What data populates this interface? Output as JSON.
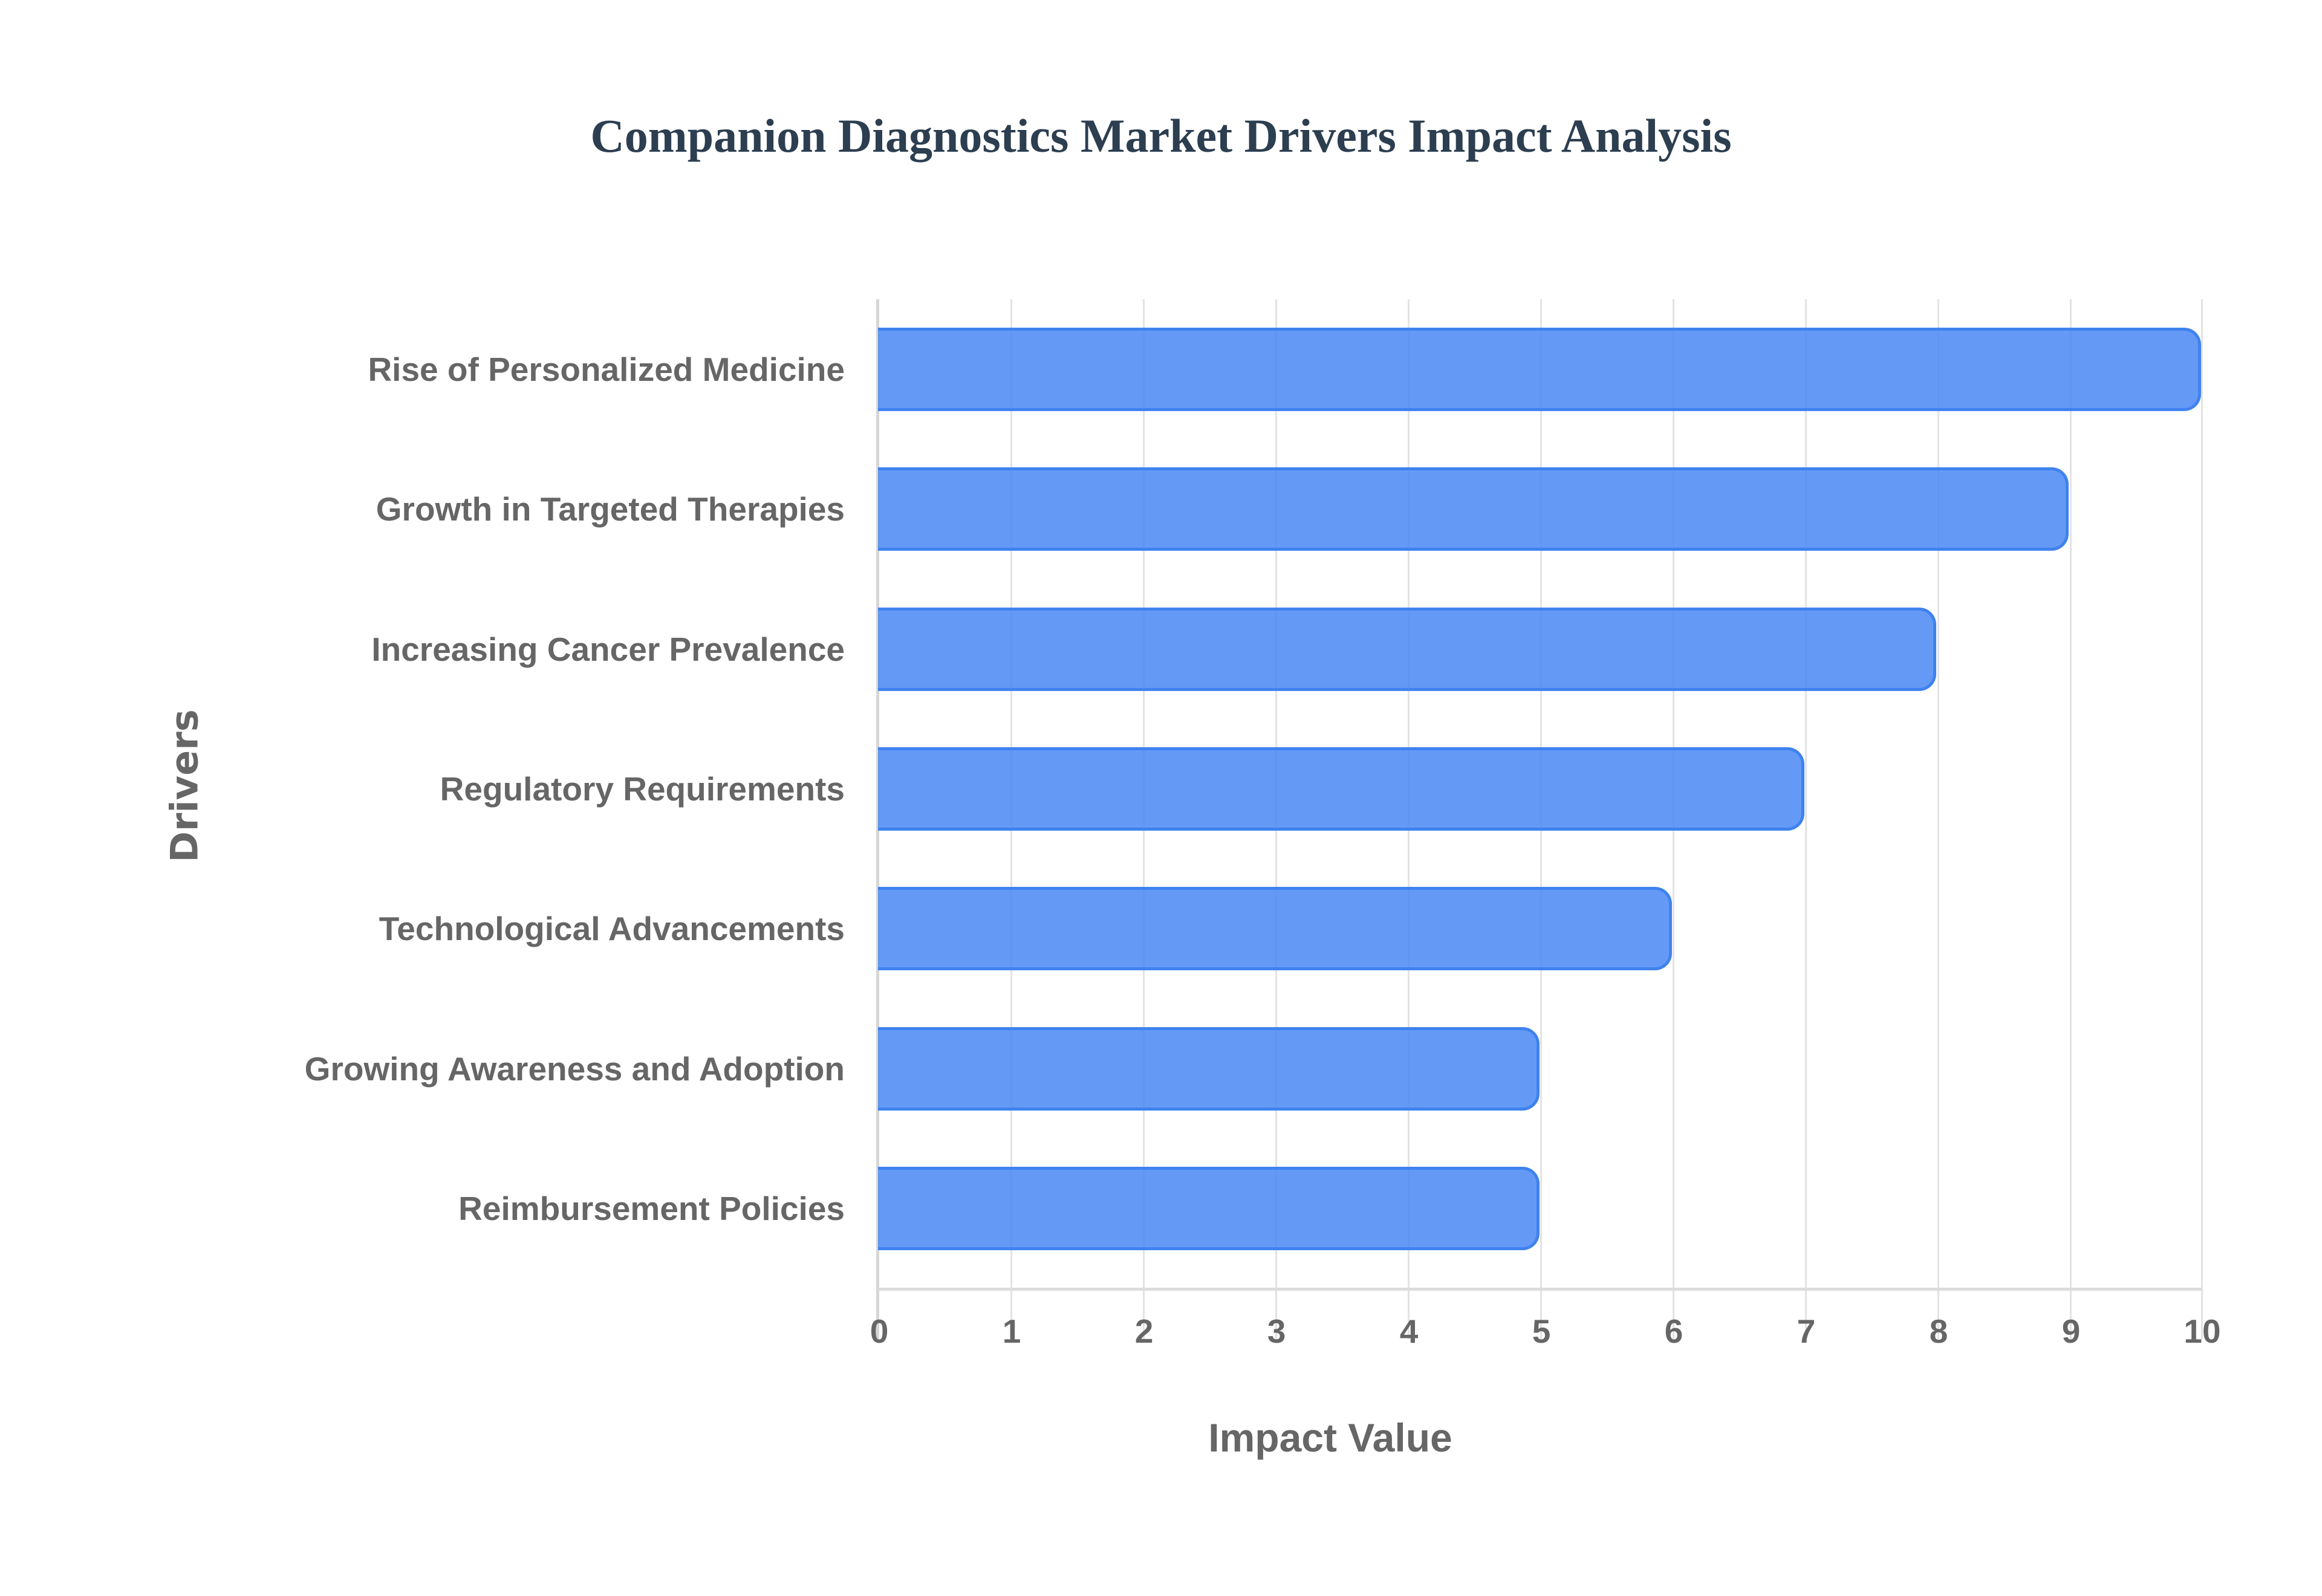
{
  "title": "Companion Diagnostics Market Drivers Impact Analysis",
  "colors": {
    "bar_fill": "#5f97f5",
    "bar_border": "#3f82ef",
    "title": "#2c3e50",
    "axis_text": "#666666",
    "grid": "#e3e3e3"
  },
  "axes": {
    "x_title": "Impact Value",
    "y_title": "Drivers",
    "x_ticks": [
      "0",
      "1",
      "2",
      "3",
      "4",
      "5",
      "6",
      "7",
      "8",
      "9",
      "10"
    ]
  },
  "bars": [
    {
      "label": "Rise of Personalized Medicine",
      "value": 10
    },
    {
      "label": "Growth in Targeted Therapies",
      "value": 9
    },
    {
      "label": "Increasing Cancer Prevalence",
      "value": 8
    },
    {
      "label": "Regulatory Requirements",
      "value": 7
    },
    {
      "label": "Technological Advancements",
      "value": 6
    },
    {
      "label": "Growing Awareness and Adoption",
      "value": 5
    },
    {
      "label": "Reimbursement Policies",
      "value": 5
    }
  ],
  "chart_data": {
    "type": "bar",
    "orientation": "horizontal",
    "title": "Companion Diagnostics Market Drivers Impact Analysis",
    "categories": [
      "Rise of Personalized Medicine",
      "Growth in Targeted Therapies",
      "Increasing Cancer Prevalence",
      "Regulatory Requirements",
      "Technological Advancements",
      "Growing Awareness and Adoption",
      "Reimbursement Policies"
    ],
    "values": [
      10,
      9,
      8,
      7,
      6,
      5,
      5
    ],
    "xlabel": "Impact Value",
    "ylabel": "Drivers",
    "xlim": [
      0,
      10
    ],
    "x_ticks": [
      0,
      1,
      2,
      3,
      4,
      5,
      6,
      7,
      8,
      9,
      10
    ],
    "grid": true,
    "legend": null
  }
}
